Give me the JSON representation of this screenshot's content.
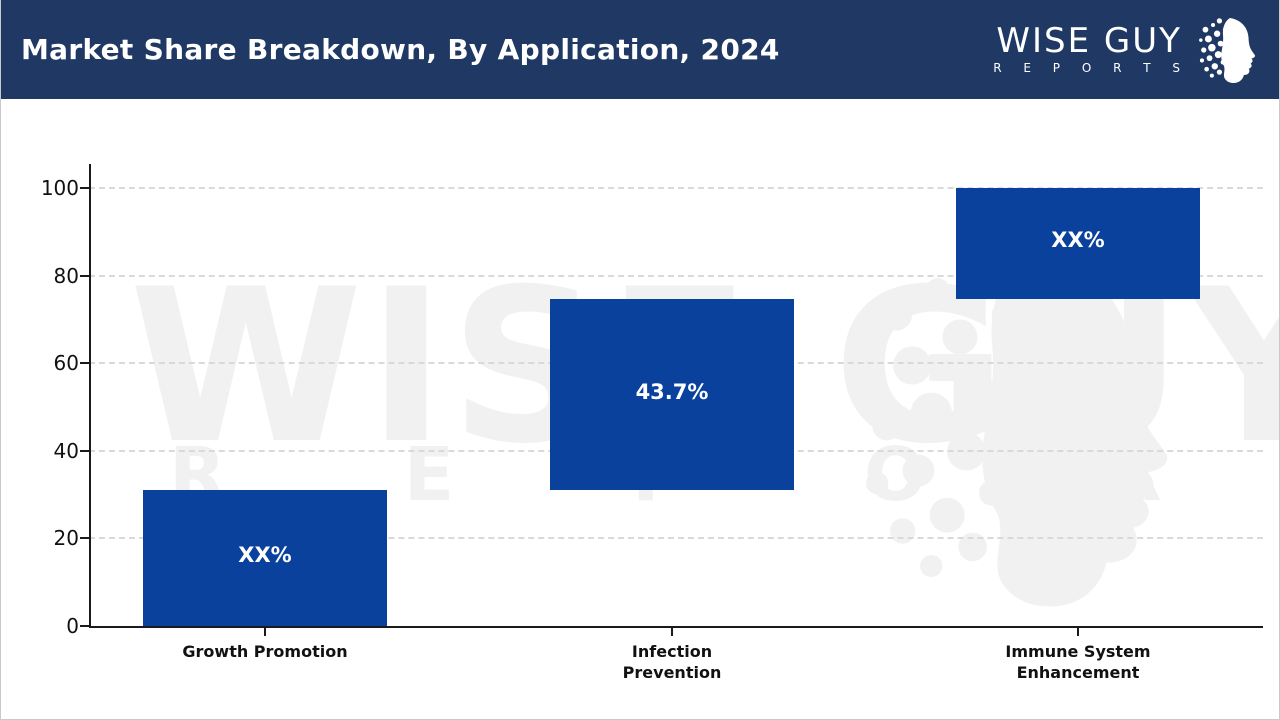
{
  "header": {
    "bg_color": "#1f3864",
    "title": "Market Share Breakdown, By Application, 2024",
    "brand": {
      "name": "WISE GUY",
      "subtitle": "R E P O R T S"
    }
  },
  "watermark": {
    "name": "WISE GUY",
    "subtitle": "R E P O R T S"
  },
  "chart_data": {
    "type": "bar",
    "variant": "floating-segment-waterfall",
    "title": "Market Share Breakdown, By Application, 2024",
    "categories": [
      "Growth Promotion",
      "Infection\nPrevention",
      "Immune System\nEnhancement"
    ],
    "series": [
      {
        "name": "Market share (%)",
        "segments": [
          {
            "category": "Growth Promotion",
            "start": 0,
            "end": 31,
            "label": "XX%"
          },
          {
            "category": "Infection Prevention",
            "start": 31,
            "end": 74.7,
            "label": "43.7%"
          },
          {
            "category": "Immune System Enhancement",
            "start": 74.7,
            "end": 100,
            "label": "XX%"
          }
        ]
      }
    ],
    "xlabel": "",
    "ylabel": "",
    "yticks": [
      0,
      20,
      40,
      60,
      80,
      100
    ],
    "ylim": [
      0,
      100
    ],
    "grid": {
      "axis": "y",
      "style": "dashed",
      "color": "#d9d9d9"
    },
    "legend": "none",
    "bar_color": "#0a419c",
    "bar_label_color": "#ffffff",
    "axis_color": "#1a1a1a"
  }
}
